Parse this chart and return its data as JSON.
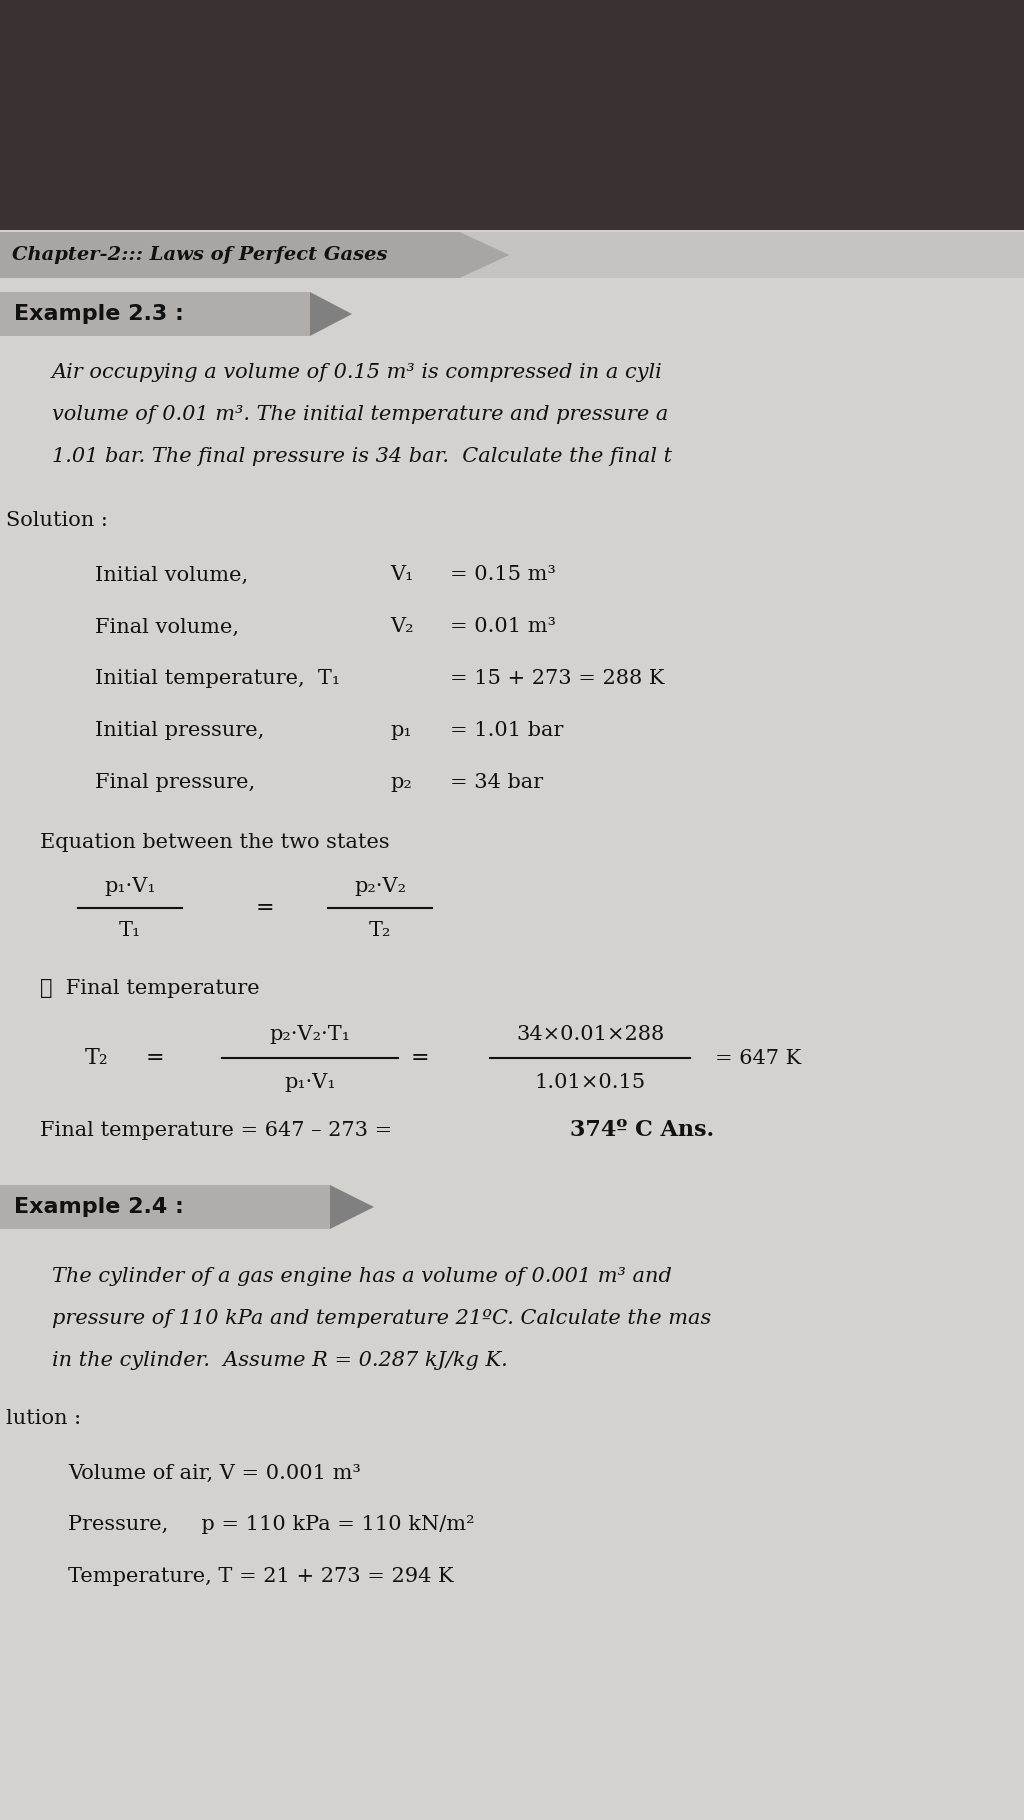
{
  "bg_page": "#d4d2ce",
  "photo_color": "#3a3230",
  "chapter_banner_dark": "#a8a6a2",
  "chapter_banner_light": "#c5c3bf",
  "example_band_color": "#b0adaa",
  "example_arrow_color": "#808080",
  "chapter_title": "Chapter-2::: Laws of Perfect Gases",
  "example_23_label": "Example 2.3 :",
  "problem_lines_23": [
    "Air occupying a volume of 0.15 m³ is compressed in a cyli",
    "volume of 0.01 m³. The initial temperature and pressure a",
    "1.01 bar. The final pressure is 34 bar.  Calculate the final t"
  ],
  "solution_label": "Solution :",
  "sol23_label1": "Initial volume,",
  "sol23_var1": "V₁",
  "sol23_val1": "= 0.15 m³",
  "sol23_label2": "Final volume,",
  "sol23_var2": "V₂",
  "sol23_val2": "= 0.01 m³",
  "sol23_label3": "Initial temperature,  T₁",
  "sol23_val3": "= 15 + 273 = 288 K",
  "sol23_label4": "Initial pressure,",
  "sol23_var4": "p₁",
  "sol23_val4": "= 1.01 bar",
  "sol23_label5": "Final pressure,",
  "sol23_var5": "p₂",
  "sol23_val5": "= 34 bar",
  "eq_between": "Equation between the two states",
  "frac_num1": "p₁·V₁",
  "frac_den1": "T₁",
  "equals": "=",
  "frac_num2": "p₂·V₂",
  "frac_den2": "T₂",
  "therefore_text": "∴  Final temperature",
  "t2_left": "T₂",
  "t2_eq": "=",
  "t2_num1": "p₂·V₂·T₁",
  "t2_den1": "p₁·V₁",
  "t2_eq2": "=",
  "t2_num2": "34×0.01×288",
  "t2_den2": "1.01×0.15",
  "t2_result": "= 647 K",
  "final_temp_text": "Final temperature = 647 – 273 = ",
  "final_temp_bold": "374º C Ans.",
  "example_24_label": "Example 2.4 :",
  "problem_lines_24": [
    "The cylinder of a gas engine has a volume of 0.001 m³ and",
    "pressure of 110 kPa and temperature 21ºC. Calculate the mas",
    "in the cylinder.  Assume R = 0.287 kJ/kg K."
  ],
  "solution_label_24": "lution :",
  "sol24_line1": "Volume of air, V = 0.001 m³",
  "sol24_line2": "Pressure,     p = 110 kPa = 110 kN/m²",
  "sol24_line3": "Temperature, T = 21 + 273 = 294 K"
}
